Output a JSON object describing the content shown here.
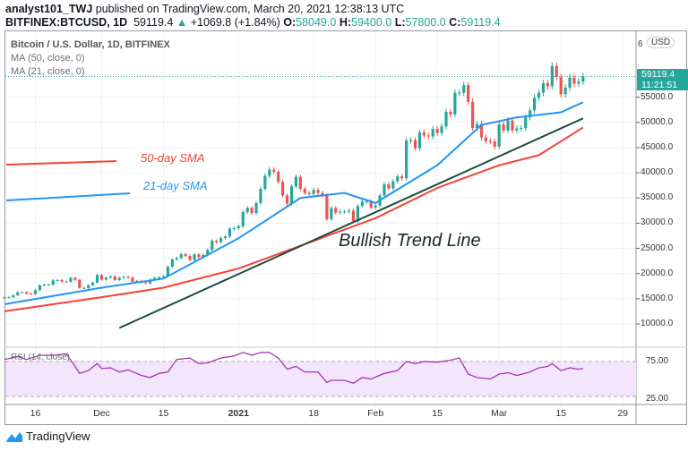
{
  "header": {
    "author": "analyst101_TWJ",
    "published": "published on TradingView.com, March 20, 2021 12:38:13 UTC",
    "symbol": "BITFINEX:BTCUSD, 1D",
    "last": "59119.4",
    "change": "+1069.8 (+1.84%)",
    "o_label": "O:",
    "o": "58049.0",
    "h_label": "H:",
    "h": "59400.0",
    "l_label": "L:",
    "l": "57800.0",
    "c_label": "C:",
    "c": "59119.4"
  },
  "legend": {
    "title": "Bitcoin / U.S. Dollar, 1D, BITFINEX",
    "ma50": "MA (50, close, 0)",
    "ma21": "MA (21, close, 0)",
    "rsi": "RSI (14, close)"
  },
  "annotations": {
    "sma50": "50-day SMA",
    "sma21": "21-day SMA",
    "trend": "Bullish Trend Line"
  },
  "price_axis": {
    "currency": "USD",
    "top_partial": "6",
    "labels": [
      "55000.0",
      "50000.0",
      "45000.0",
      "40000.0",
      "35000.0",
      "30000.0",
      "25000.0",
      "20000.0",
      "15000.0",
      "10000.0"
    ],
    "values": [
      55000,
      50000,
      45000,
      40000,
      35000,
      30000,
      25000,
      20000,
      15000,
      10000
    ],
    "current_price": "59119.4",
    "countdown": "11:21:51"
  },
  "rsi_axis": {
    "labels": [
      "75.00",
      "25.00"
    ]
  },
  "time_axis": {
    "labels": [
      "16",
      "Dec",
      "15",
      "2021",
      "18",
      "Feb",
      "15",
      "Mar",
      "15",
      "29"
    ],
    "days": [
      7,
      22,
      36,
      53,
      70,
      84,
      98,
      112,
      126,
      140
    ]
  },
  "colors": {
    "up": "#26a69a",
    "down": "#ef5350",
    "ma21": "#2196f3",
    "ma50": "#f44336",
    "trend": "#1e4d3a",
    "rsi": "#9c27b0",
    "rsi_band": "#f3e5fc"
  },
  "chart_data": {
    "type": "candlestick",
    "start_date": "2020-11-09",
    "closes": [
      15300,
      15300,
      15700,
      16300,
      16300,
      16000,
      15950,
      16700,
      17650,
      17800,
      17800,
      18650,
      18700,
      18400,
      18400,
      19150,
      18750,
      17150,
      17150,
      17700,
      18200,
      19700,
      18800,
      19200,
      19450,
      18700,
      19150,
      19350,
      19200,
      18350,
      18550,
      18250,
      18050,
      18800,
      19150,
      19250,
      19450,
      21350,
      22800,
      23100,
      23850,
      23500,
      22700,
      23800,
      23250,
      23700,
      24700,
      26500,
      26250,
      27050,
      27350,
      28900,
      29000,
      29400,
      32200,
      33000,
      32000,
      34000,
      36800,
      39400,
      40600,
      40200,
      38200,
      35500,
      33900,
      37300,
      39200,
      36800,
      36000,
      35800,
      36600,
      36000,
      35500,
      30800,
      33000,
      32100,
      32300,
      32300,
      32500,
      30400,
      33400,
      34300,
      34300,
      33100,
      33500,
      35500,
      37700,
      36900,
      38300,
      39300,
      38900,
      46400,
      46500,
      44900,
      48000,
      47400,
      47200,
      48700,
      47900,
      49200,
      52100,
      51600,
      55900,
      55900,
      57400,
      54100,
      48900,
      49700,
      47000,
      46300,
      46200,
      45200,
      49600,
      48400,
      50400,
      48400,
      48800,
      48900,
      51000,
      52400,
      54900,
      55900,
      57800,
      57200,
      61200,
      59000,
      55600,
      56900,
      58900,
      57700,
      58100,
      59119.4
    ],
    "ma21": [
      [
        0,
        13900
      ],
      [
        22,
        17200
      ],
      [
        36,
        19000
      ],
      [
        53,
        27000
      ],
      [
        67,
        35000
      ],
      [
        77,
        36000
      ],
      [
        84,
        34000
      ],
      [
        98,
        41500
      ],
      [
        108,
        49500
      ],
      [
        116,
        51000
      ],
      [
        126,
        52000
      ],
      [
        131,
        54000
      ]
    ],
    "ma50": [
      [
        0,
        12500
      ],
      [
        22,
        15300
      ],
      [
        36,
        17200
      ],
      [
        53,
        21000
      ],
      [
        67,
        25500
      ],
      [
        84,
        31000
      ],
      [
        98,
        37000
      ],
      [
        112,
        41500
      ],
      [
        121,
        43500
      ],
      [
        131,
        49000
      ]
    ],
    "trend_line": [
      [
        26,
        9200
      ],
      [
        131,
        50800
      ]
    ],
    "rsi": [
      [
        0,
        78
      ],
      [
        3,
        82
      ],
      [
        5,
        78
      ],
      [
        8,
        84
      ],
      [
        11,
        84
      ],
      [
        14,
        86
      ],
      [
        16,
        68
      ],
      [
        17,
        58
      ],
      [
        19,
        62
      ],
      [
        21,
        72
      ],
      [
        22,
        65
      ],
      [
        24,
        66
      ],
      [
        26,
        60
      ],
      [
        28,
        63
      ],
      [
        31,
        55
      ],
      [
        33,
        52
      ],
      [
        35,
        58
      ],
      [
        37,
        60
      ],
      [
        39,
        78
      ],
      [
        42,
        80
      ],
      [
        44,
        72
      ],
      [
        46,
        73
      ],
      [
        49,
        80
      ],
      [
        52,
        83
      ],
      [
        54,
        88
      ],
      [
        56,
        84
      ],
      [
        58,
        88
      ],
      [
        60,
        88
      ],
      [
        62,
        80
      ],
      [
        64,
        64
      ],
      [
        66,
        68
      ],
      [
        68,
        60
      ],
      [
        71,
        60
      ],
      [
        73,
        45
      ],
      [
        74,
        48
      ],
      [
        77,
        48
      ],
      [
        79,
        44
      ],
      [
        81,
        52
      ],
      [
        83,
        50
      ],
      [
        86,
        58
      ],
      [
        89,
        62
      ],
      [
        91,
        75
      ],
      [
        93,
        72
      ],
      [
        95,
        75
      ],
      [
        98,
        74
      ],
      [
        101,
        77
      ],
      [
        103,
        80
      ],
      [
        105,
        57
      ],
      [
        107,
        52
      ],
      [
        110,
        50
      ],
      [
        112,
        57
      ],
      [
        114,
        59
      ],
      [
        116,
        55
      ],
      [
        119,
        60
      ],
      [
        121,
        66
      ],
      [
        123,
        68
      ],
      [
        124,
        72
      ],
      [
        126,
        62
      ],
      [
        128,
        66
      ],
      [
        130,
        64
      ],
      [
        131,
        65
      ]
    ],
    "ylim": [
      10000,
      65000
    ],
    "rsi_levels": [
      75,
      25
    ]
  }
}
